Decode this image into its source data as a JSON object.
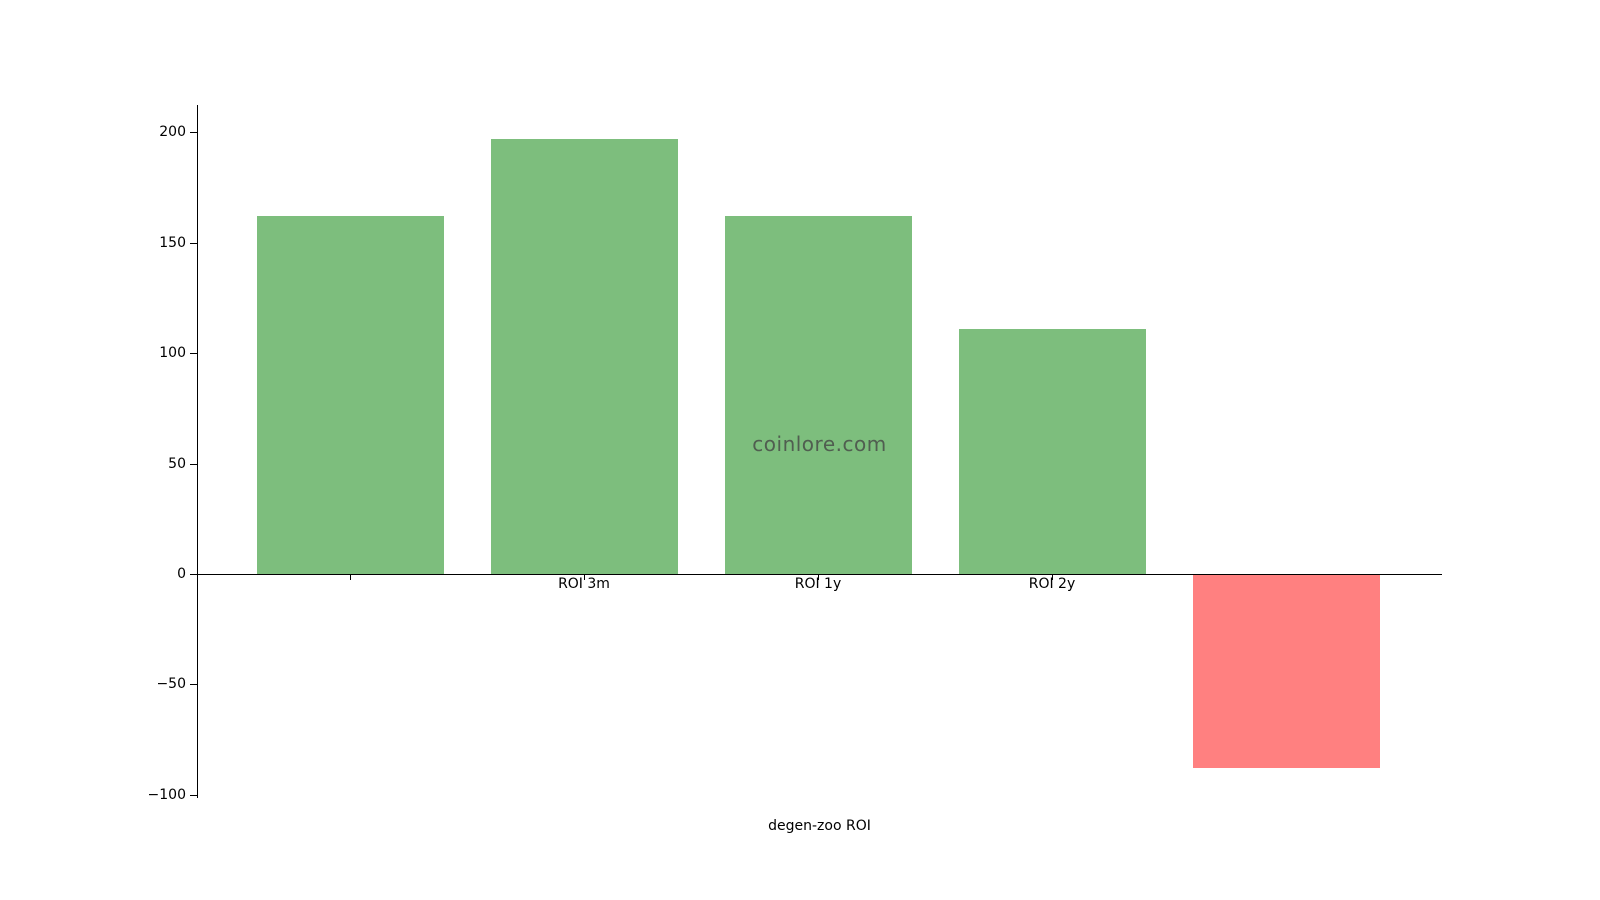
{
  "chart_data": {
    "type": "bar",
    "title": "degen-zoo ROI",
    "title_position": "bottom",
    "watermark": "coinlore.com",
    "categories": [
      "",
      "ROI 3m",
      "ROI 1y",
      "ROI 2y",
      null
    ],
    "values": [
      162,
      197,
      162,
      111,
      -88
    ],
    "bar_colors": [
      "#7dbe7d",
      "#7dbe7d",
      "#7dbe7d",
      "#7dbe7d",
      "#ff8080"
    ],
    "colors": {
      "positive": "#7dbe7d",
      "negative": "#ff8080",
      "axis": "#000000",
      "watermark": "#444444",
      "background": "#ffffff"
    },
    "yticks": [
      {
        "value": 200,
        "label": "200"
      },
      {
        "value": 150,
        "label": "150"
      },
      {
        "value": 100,
        "label": "100"
      },
      {
        "value": 50,
        "label": "50"
      },
      {
        "value": 0,
        "label": "0"
      },
      {
        "value": -50,
        "label": "−50"
      },
      {
        "value": -100,
        "label": "−100"
      }
    ],
    "ylim": [
      -102.3,
      212.3
    ],
    "xlabel": "",
    "ylabel": "",
    "grid": false,
    "legend": "none"
  }
}
